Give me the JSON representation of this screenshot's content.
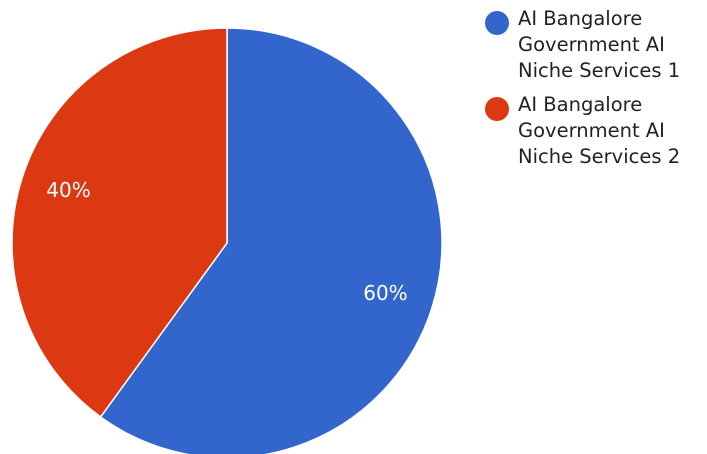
{
  "chart_data": {
    "type": "pie",
    "categories": [
      "AI Bangalore Government AI Niche Services 1",
      "AI Bangalore Government AI Niche Services 2"
    ],
    "values": [
      60,
      40
    ],
    "value_labels": [
      "60%",
      "40%"
    ],
    "colors": [
      "#3366cc",
      "#dc3912"
    ],
    "legend_position": "right"
  }
}
